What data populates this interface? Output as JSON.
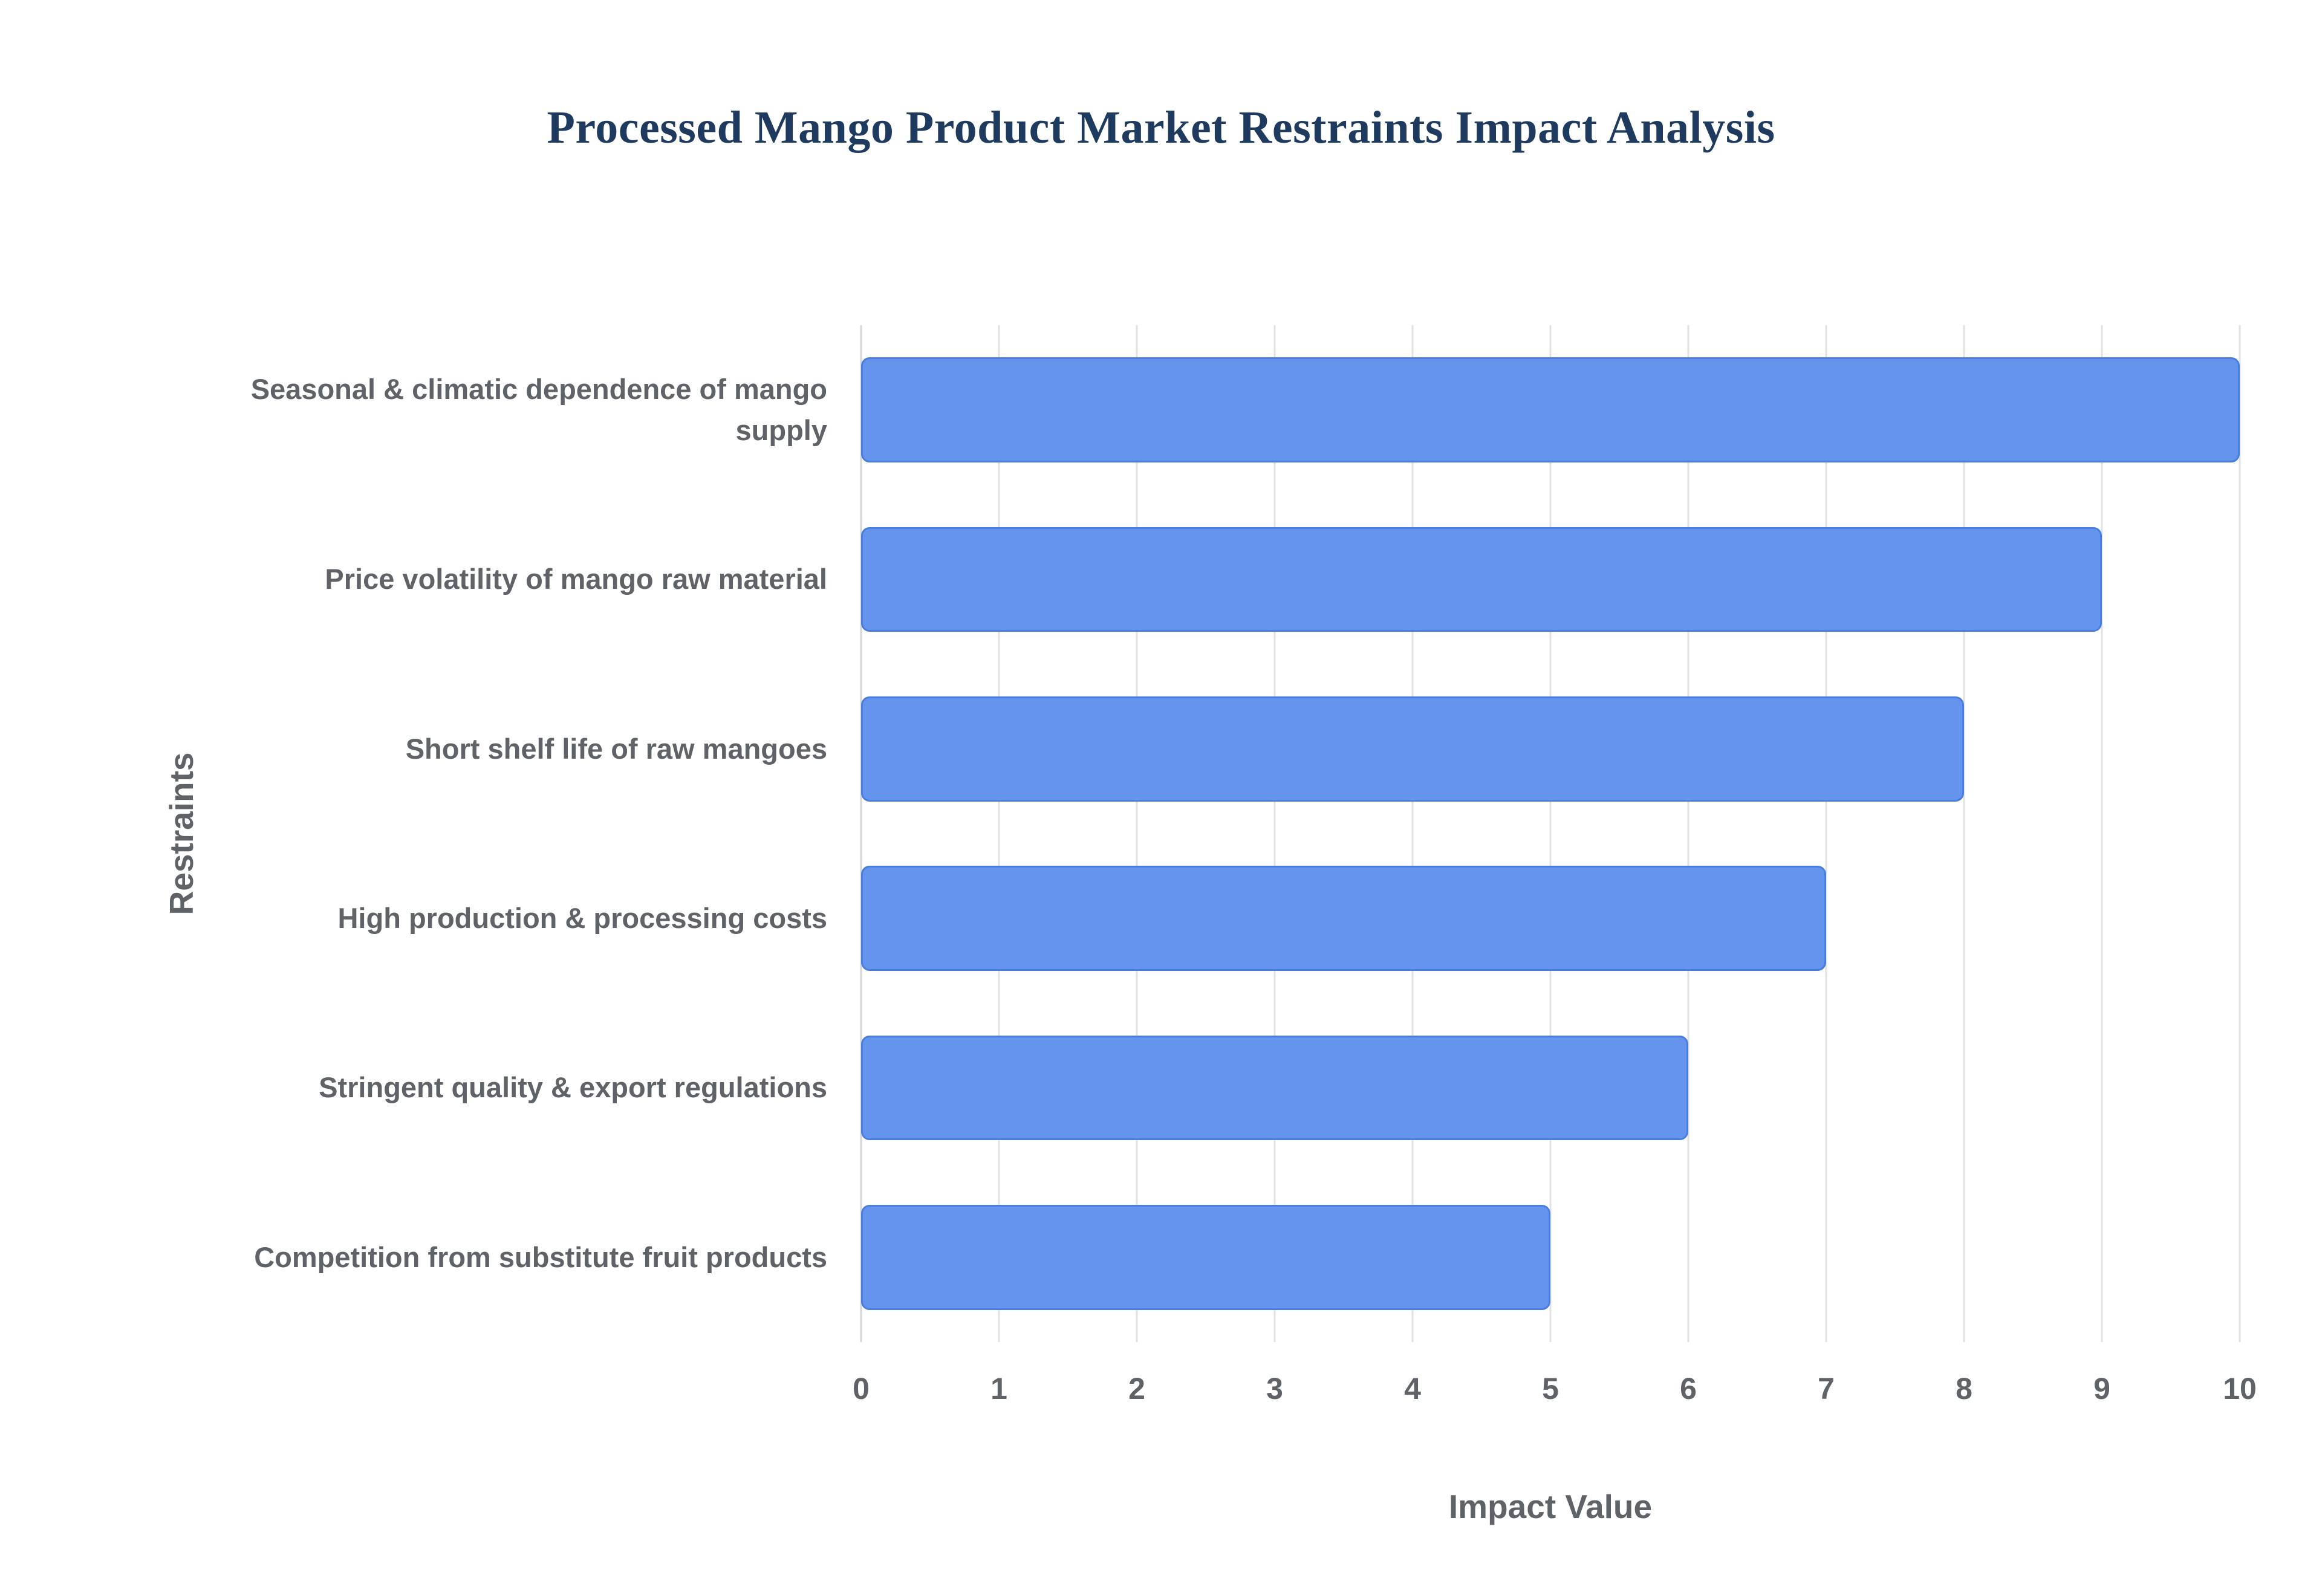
{
  "chart": {
    "title": "Processed Mango Product Market Restraints Impact Analysis",
    "xlabel": "Impact Value",
    "ylabel": "Restraints"
  },
  "colors": {
    "bar_fill": "#6494ec",
    "bar_border": "#4a7de0",
    "title_text": "#1e3a5f",
    "axis_text": "#5f6368",
    "gridline": "#e2e2e2"
  },
  "chart_data": {
    "type": "bar",
    "orientation": "horizontal",
    "title": "Processed Mango Product Market Restraints Impact Analysis",
    "xlabel": "Impact Value",
    "ylabel": "Restraints",
    "categories": [
      "Seasonal & climatic dependence of mango supply",
      "Price volatility of mango raw material",
      "Short shelf life of raw mangoes",
      "High production & processing costs",
      "Stringent quality & export regulations",
      "Competition from substitute fruit products"
    ],
    "values": [
      10,
      9,
      8,
      7,
      6,
      5
    ],
    "xlim": [
      0,
      10
    ],
    "xticks": [
      0,
      1,
      2,
      3,
      4,
      5,
      6,
      7,
      8,
      9,
      10
    ],
    "grid": "vertical",
    "legend": "none"
  }
}
